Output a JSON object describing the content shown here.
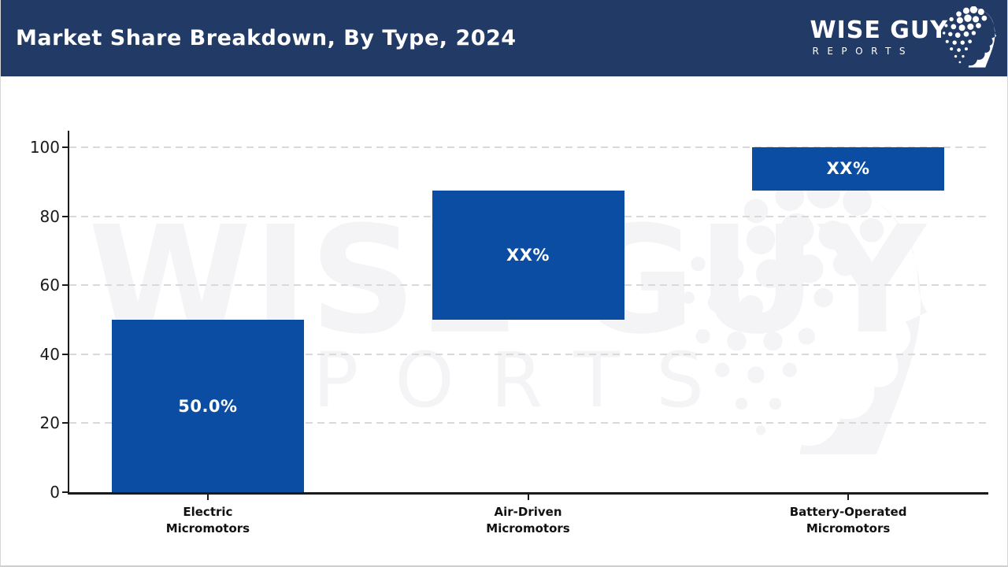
{
  "header": {
    "title": "Market Share Breakdown, By Type, 2024",
    "logo": {
      "name": "WISE GUY",
      "tagline": "REPORTS"
    }
  },
  "watermark": {
    "name": "WISE GUY",
    "tagline": "REPORTS"
  },
  "colors": {
    "header_bg": "#213a66",
    "bar": "#0b4da2",
    "grid": "#d9d9d9",
    "axis": "#1a1a1a",
    "bar_label": "#ffffff",
    "watermark": "#f4f4f6"
  },
  "chart_data": {
    "type": "bar",
    "variant": "floating-segment-waterfall",
    "title": "Market Share Breakdown, By Type, 2024",
    "categories": [
      "Electric Micromotors",
      "Air-Driven Micromotors",
      "Battery-Operated Micromotors"
    ],
    "bars": [
      {
        "category": "Electric Micromotors",
        "start": 0,
        "end": 50,
        "label": "50.0%"
      },
      {
        "category": "Air-Driven Micromotors",
        "start": 50,
        "end": 87.5,
        "label": "XX%"
      },
      {
        "category": "Battery-Operated Micromotors",
        "start": 87.5,
        "end": 100,
        "label": "XX%"
      }
    ],
    "ylim": [
      0,
      100
    ],
    "yticks": [
      0,
      20,
      40,
      60,
      80,
      100
    ],
    "xlabel": "",
    "ylabel": "",
    "grid": "horizontal-dashed",
    "legend": false
  }
}
